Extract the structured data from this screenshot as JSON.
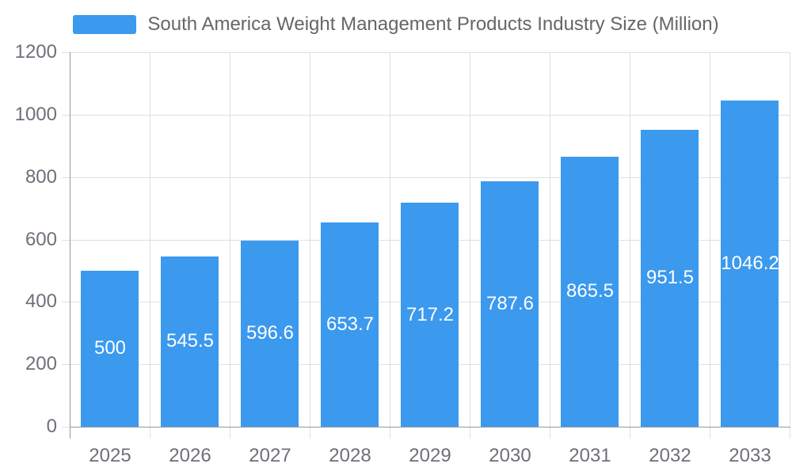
{
  "colors": {
    "bar": "#3b99ee",
    "grid": "#e0e0e0",
    "axis": "#999999",
    "axis_text": "#6e7079",
    "legend_text": "#666666",
    "bar_label_text": "#ffffff",
    "background": "#ffffff"
  },
  "legend": {
    "label": "South America Weight Management Products Industry Size (Million)"
  },
  "chart_data": {
    "type": "bar",
    "title": "South America Weight Management Products Industry Size (Million)",
    "categories": [
      "2025",
      "2026",
      "2027",
      "2028",
      "2029",
      "2030",
      "2031",
      "2032",
      "2033"
    ],
    "values": [
      500,
      545.5,
      596.6,
      653.7,
      717.2,
      787.6,
      865.5,
      951.5,
      1046.2
    ],
    "series": [
      {
        "name": "South America Weight Management Products Industry Size (Million)",
        "values": [
          500,
          545.5,
          596.6,
          653.7,
          717.2,
          787.6,
          865.5,
          951.5,
          1046.2
        ]
      }
    ],
    "xlabel": "",
    "ylabel": "",
    "ylim": [
      0,
      1200
    ],
    "yticks": [
      0,
      200,
      400,
      600,
      800,
      1000,
      1200
    ],
    "grid": true,
    "legend_position": "top",
    "value_labels_position": "inside-center"
  }
}
